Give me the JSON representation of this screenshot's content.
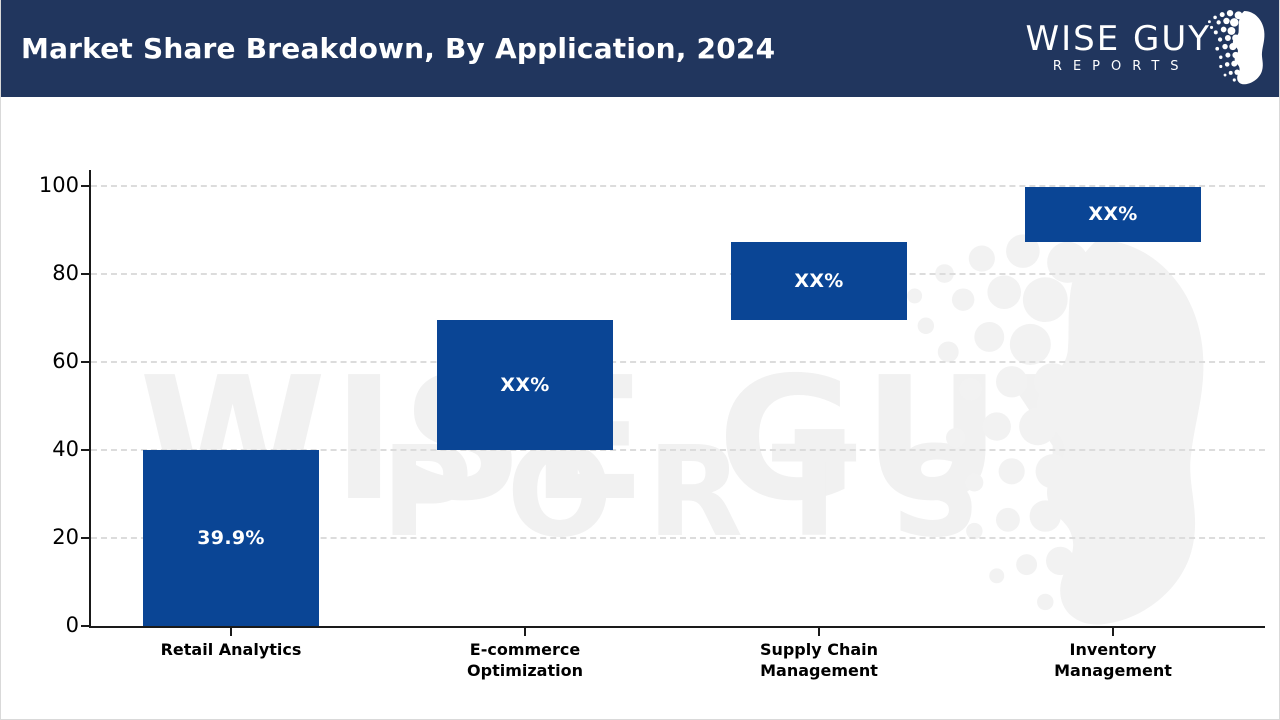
{
  "page": {
    "background": "#ffffff",
    "border_color": "#d9d9d9"
  },
  "header": {
    "title": "Market Share Breakdown, By Application, 2024",
    "bg_color": "#21365e",
    "text_color": "#ffffff",
    "logo": {
      "brand": "WISE GUY",
      "sub": "REPORTS",
      "icon": "dotted-face-profile"
    }
  },
  "chart_data": {
    "type": "bar",
    "subtype": "waterfall",
    "title": "Market Share Breakdown, By Application, 2024",
    "categories": [
      "Retail Analytics",
      "E-commerce Optimization",
      "Supply Chain Management",
      "Inventory Management"
    ],
    "category_lines": [
      [
        "Retail Analytics"
      ],
      [
        "E-commerce",
        "Optimization"
      ],
      [
        "Supply Chain",
        "Management"
      ],
      [
        "Inventory",
        "Management"
      ]
    ],
    "segments": [
      {
        "category": "Retail Analytics",
        "start": 0,
        "end": 39.9,
        "label": "39.9%"
      },
      {
        "category": "E-commerce Optimization",
        "start": 39.9,
        "end": 69.6,
        "label": "XX%"
      },
      {
        "category": "Supply Chain Management",
        "start": 69.6,
        "end": 87.3,
        "label": "XX%"
      },
      {
        "category": "Inventory Management",
        "start": 87.3,
        "end": 99.8,
        "label": "XX%"
      }
    ],
    "ylim": [
      0,
      103.5
    ],
    "yticks": [
      0,
      20,
      40,
      60,
      80,
      100
    ],
    "xlabel": "",
    "ylabel": "",
    "bar_color": "#0a4595",
    "bar_label_color": "#ffffff",
    "axis_color": "#1a1a1a",
    "grid": {
      "axis": "y",
      "style": "dashed",
      "color": "#dcdcdc"
    },
    "legend": "none",
    "watermark": {
      "line1": "WISE GUY",
      "line2": "PORTS"
    }
  }
}
